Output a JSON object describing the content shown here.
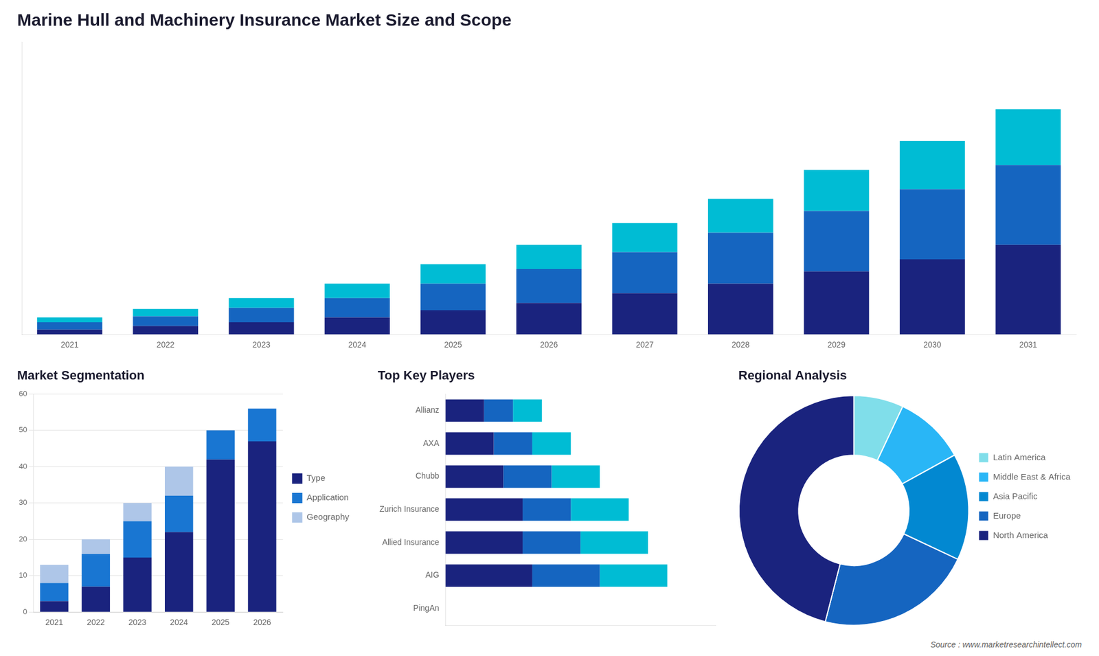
{
  "chart_data": [
    {
      "type": "bar",
      "title": "Marine Hull and Machinery Insurance Market Size and Scope",
      "categories": [
        "2021",
        "2022",
        "2023",
        "2024",
        "2025",
        "2026",
        "2027",
        "2028",
        "2029",
        "2030",
        "2031"
      ],
      "series": [
        {
          "color": "#1a237e",
          "values": [
            2,
            3.5,
            5,
            7,
            10,
            13,
            17,
            21,
            26,
            31,
            37
          ]
        },
        {
          "color": "#1565c0",
          "values": [
            3,
            4,
            6,
            8,
            11,
            14,
            17,
            21,
            25,
            29,
            33
          ]
        },
        {
          "color": "#00bcd4",
          "values": [
            2,
            3,
            4,
            6,
            8,
            10,
            12,
            14,
            17,
            20,
            23
          ]
        }
      ],
      "stacked": true,
      "ylim": [
        0,
        120.9
      ],
      "tick_labels": "x",
      "grid": false,
      "annotations": [
        "Source : www.marketresearchintellect.com"
      ]
    },
    {
      "type": "bar",
      "title": "Market Segmentation",
      "categories": [
        "2021",
        "2022",
        "2023",
        "2024",
        "2025",
        "2026"
      ],
      "series": [
        {
          "name": "Type",
          "color": "#1a237e",
          "values": [
            3,
            7,
            15,
            22,
            42,
            47
          ]
        },
        {
          "name": "Application",
          "color": "#1976d2",
          "values": [
            5,
            9,
            10,
            10,
            8,
            9
          ]
        },
        {
          "name": "Geography",
          "color": "#aec6e8",
          "values": [
            5,
            4,
            5,
            8,
            0,
            0
          ]
        }
      ],
      "stacked": true,
      "ylim": [
        0,
        60
      ],
      "yticks": [
        0,
        10,
        20,
        30,
        40,
        50,
        60
      ],
      "grid": true,
      "legend": "right"
    },
    {
      "type": "bar",
      "title": "Top Key Players",
      "orientation": "horizontal",
      "categories": [
        "PingAn",
        "AIG",
        "Allied Insurance",
        "Zurich Insurance",
        "Chubb",
        "AXA",
        "Allianz"
      ],
      "series": [
        {
          "color": "#1a237e",
          "values": [
            0,
            9,
            8,
            8,
            6,
            5,
            4
          ]
        },
        {
          "color": "#1565c0",
          "values": [
            0,
            7,
            6,
            5,
            5,
            4,
            3
          ]
        },
        {
          "color": "#00bcd4",
          "values": [
            0,
            7,
            7,
            6,
            5,
            4,
            3
          ]
        }
      ],
      "stacked": true,
      "xlim": [
        0,
        28
      ],
      "tick_labels": "y",
      "grid": false
    },
    {
      "type": "doughnut",
      "title": "Regional Analysis",
      "categories": [
        "Latin America",
        "Middle East &\nAfrica",
        "Asia Pacific",
        "Europe",
        "North America"
      ],
      "values": [
        7,
        10,
        15,
        22,
        46
      ],
      "colors": [
        "#80deea",
        "#29b6f6",
        "#0288d1",
        "#1565c0",
        "#1a237e"
      ],
      "legend": "right"
    }
  ]
}
